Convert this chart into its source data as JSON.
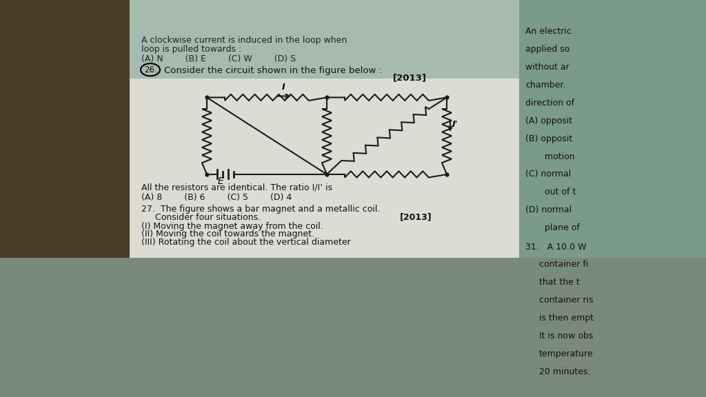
{
  "bg_color": "#7a8a7a",
  "paper_color": "#dcdcd4",
  "dark_left_color": "#5a4a32",
  "shadow_top_color": "#8a9a8a",
  "title_text": "Consider the circuit shown in the figure below :",
  "year_text": "[2013]",
  "prev_line1": "A clockwise current is induced in the loop when",
  "prev_line2": "loop is pulled towards :",
  "prev_options": "(A) N        (B) E        (C) W        (D) S",
  "caption": "All the resistors are identical. The ratio I/I’ is",
  "options_a": "(A) 8",
  "options_b": "(B) 6",
  "options_c": "(C) 5",
  "options_d": "(D) 4",
  "q27_line1": "27.  The figure shows a bar magnet and a metallic coil.",
  "q27_line2": "     Consider four situations.",
  "q27_year": "[2013]",
  "q27_i": "(I) Moving the magnet away from the coil.",
  "q27_ii": "(II) Moving the coil towards the magnet.",
  "q27_iii": "(III) Rotating the coil about the vertical diameter",
  "right_lines": [
    "An electric",
    "applied so",
    "without ar",
    "chamber.",
    "direction of",
    "(A) opposit",
    "(B) opposit",
    "       motion",
    "(C) normal",
    "       out of t",
    "(D) normal",
    "       plane of"
  ],
  "q31_line": "31.   A 10.0 W",
  "q31_rest": [
    "container fi",
    "that the t",
    "container ris",
    "is then empt",
    "It is now obs",
    "temperature",
    "20 minutes."
  ],
  "wire_color": "#1a1a1a",
  "res_color": "#1a1a1a",
  "text_color": "#111111"
}
